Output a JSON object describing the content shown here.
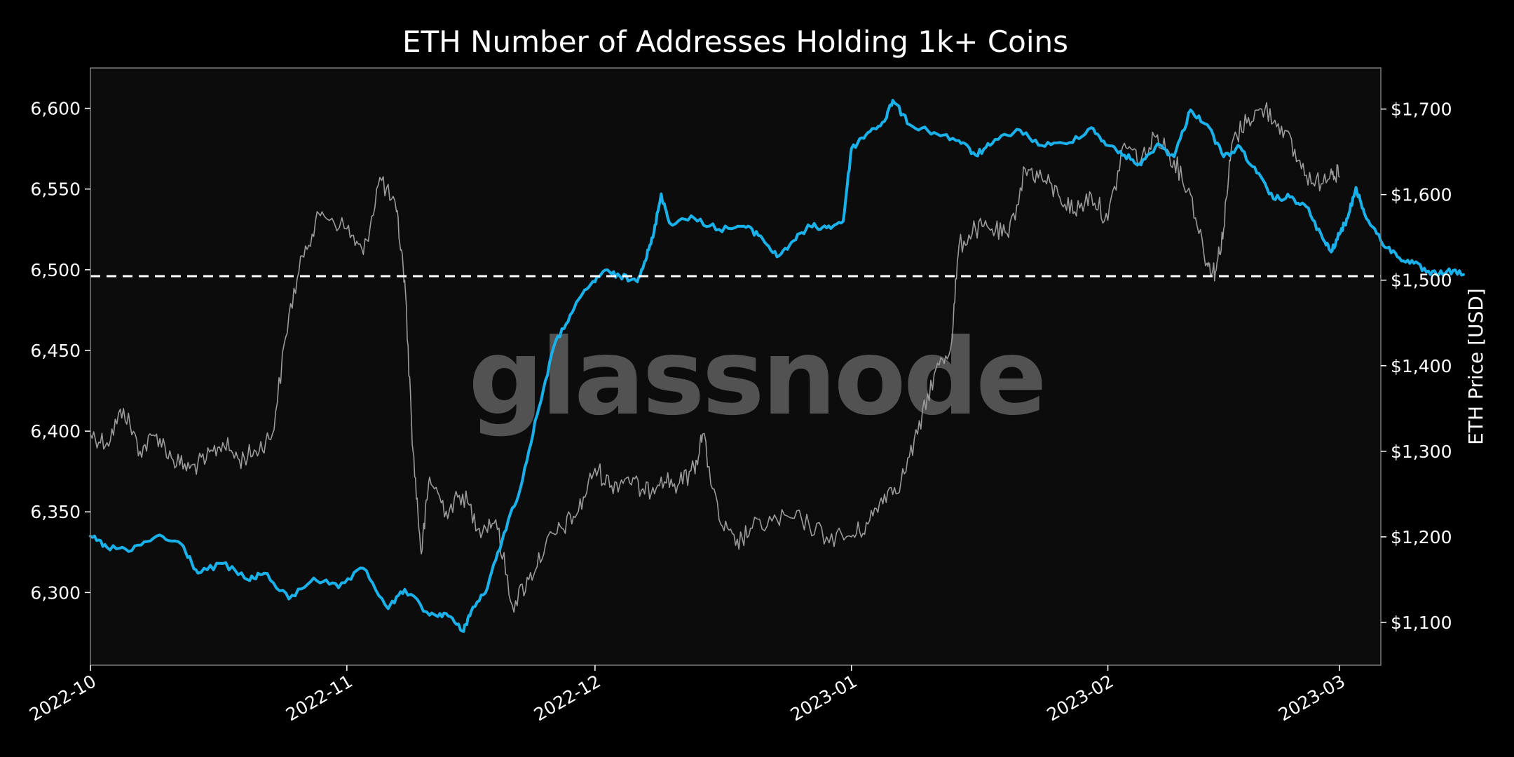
{
  "chart_data": {
    "type": "line",
    "title": "ETH Number of Addresses Holding 1k+ Coins",
    "watermark": "glassnode",
    "ylabel_right": "ETH Price [USD]",
    "x_ticks": [
      "2022-10",
      "2022-11",
      "2022-12",
      "2023-01",
      "2023-02",
      "2023-03"
    ],
    "x_range": [
      "2022-10-01",
      "2023-03-06"
    ],
    "y_left": {
      "ticks": [
        6300,
        6350,
        6400,
        6450,
        6500,
        6550,
        6600
      ],
      "tick_labels": [
        "6,300",
        "6,350",
        "6,400",
        "6,450",
        "6,500",
        "6,550",
        "6,600"
      ],
      "range": [
        6255,
        6625
      ]
    },
    "y_right": {
      "ticks": [
        1100,
        1200,
        1300,
        1400,
        1500,
        1600,
        1700
      ],
      "tick_labels": [
        "$1,100",
        "$1,200",
        "$1,300",
        "$1,400",
        "$1,500",
        "$1,600",
        "$1,700"
      ],
      "range": [
        1050,
        1748
      ]
    },
    "reference_line": {
      "axis": "left",
      "value": 6496
    },
    "series": [
      {
        "name": "Addresses Holding 1k+ Coins",
        "axis": "left",
        "color": "#1ab1ea",
        "anchors": [
          [
            "2022-10-01",
            6335
          ],
          [
            "2022-10-03",
            6328
          ],
          [
            "2022-10-06",
            6326
          ],
          [
            "2022-10-09",
            6335
          ],
          [
            "2022-10-12",
            6330
          ],
          [
            "2022-10-14",
            6312
          ],
          [
            "2022-10-17",
            6318
          ],
          [
            "2022-10-20",
            6308
          ],
          [
            "2022-10-22",
            6312
          ],
          [
            "2022-10-25",
            6296
          ],
          [
            "2022-10-28",
            6309
          ],
          [
            "2022-10-31",
            6303
          ],
          [
            "2022-11-03",
            6315
          ],
          [
            "2022-11-06",
            6290
          ],
          [
            "2022-11-08",
            6302
          ],
          [
            "2022-11-11",
            6286
          ],
          [
            "2022-11-13",
            6287
          ],
          [
            "2022-11-15",
            6276
          ],
          [
            "2022-11-16",
            6288
          ],
          [
            "2022-11-18",
            6303
          ],
          [
            "2022-11-20",
            6337
          ],
          [
            "2022-11-22",
            6365
          ],
          [
            "2022-11-24",
            6410
          ],
          [
            "2022-11-26",
            6452
          ],
          [
            "2022-11-28",
            6472
          ],
          [
            "2022-11-30",
            6488
          ],
          [
            "2022-12-02",
            6499
          ],
          [
            "2022-12-04",
            6496
          ],
          [
            "2022-12-06",
            6493
          ],
          [
            "2022-12-07",
            6505
          ],
          [
            "2022-12-08",
            6520
          ],
          [
            "2022-12-09",
            6547
          ],
          [
            "2022-12-10",
            6529
          ],
          [
            "2022-12-13",
            6532
          ],
          [
            "2022-12-16",
            6525
          ],
          [
            "2022-12-19",
            6527
          ],
          [
            "2022-12-21",
            6521
          ],
          [
            "2022-12-23",
            6508
          ],
          [
            "2022-12-25",
            6518
          ],
          [
            "2022-12-27",
            6527
          ],
          [
            "2022-12-29",
            6526
          ],
          [
            "2022-12-31",
            6530
          ],
          [
            "2023-01-01",
            6575
          ],
          [
            "2023-01-03",
            6585
          ],
          [
            "2023-01-05",
            6592
          ],
          [
            "2023-01-06",
            6605
          ],
          [
            "2023-01-08",
            6590
          ],
          [
            "2023-01-11",
            6585
          ],
          [
            "2023-01-14",
            6580
          ],
          [
            "2023-01-16",
            6571
          ],
          [
            "2023-01-18",
            6578
          ],
          [
            "2023-01-21",
            6587
          ],
          [
            "2023-01-24",
            6577
          ],
          [
            "2023-01-27",
            6578
          ],
          [
            "2023-01-30",
            6588
          ],
          [
            "2023-02-01",
            6577
          ],
          [
            "2023-02-03",
            6571
          ],
          [
            "2023-02-05",
            6565
          ],
          [
            "2023-02-07",
            6578
          ],
          [
            "2023-02-09",
            6570
          ],
          [
            "2023-02-11",
            6599
          ],
          [
            "2023-02-13",
            6590
          ],
          [
            "2023-02-15",
            6570
          ],
          [
            "2023-02-17",
            6576
          ],
          [
            "2023-02-19",
            6560
          ],
          [
            "2023-02-21",
            6544
          ],
          [
            "2023-02-23",
            6545
          ],
          [
            "2023-02-25",
            6539
          ],
          [
            "2023-02-27",
            6519
          ],
          [
            "2023-02-28",
            6511
          ],
          [
            "2023-03-01",
            6522
          ],
          [
            "2023-03-02",
            6532
          ],
          [
            "2023-03-03",
            6551
          ],
          [
            "2023-03-04",
            6535
          ],
          [
            "2023-03-06",
            6518
          ],
          [
            "2023-03-08",
            6508
          ],
          [
            "2023-03-10",
            6504
          ],
          [
            "2023-03-12",
            6497
          ],
          [
            "2023-03-14",
            6499
          ],
          [
            "2023-03-16",
            6497
          ]
        ]
      },
      {
        "name": "ETH Price [USD]",
        "axis": "right",
        "color": "#9a9a9a",
        "anchors": [
          [
            "2022-10-01",
            1320
          ],
          [
            "2022-10-03",
            1310
          ],
          [
            "2022-10-05",
            1350
          ],
          [
            "2022-10-07",
            1300
          ],
          [
            "2022-10-09",
            1320
          ],
          [
            "2022-10-11",
            1290
          ],
          [
            "2022-10-13",
            1280
          ],
          [
            "2022-10-15",
            1290
          ],
          [
            "2022-10-17",
            1310
          ],
          [
            "2022-10-19",
            1290
          ],
          [
            "2022-10-21",
            1300
          ],
          [
            "2022-10-23",
            1320
          ],
          [
            "2022-10-25",
            1460
          ],
          [
            "2022-10-27",
            1540
          ],
          [
            "2022-10-29",
            1580
          ],
          [
            "2022-11-01",
            1560
          ],
          [
            "2022-11-03",
            1530
          ],
          [
            "2022-11-05",
            1620
          ],
          [
            "2022-11-07",
            1580
          ],
          [
            "2022-11-08",
            1500
          ],
          [
            "2022-11-09",
            1300
          ],
          [
            "2022-11-10",
            1180
          ],
          [
            "2022-11-11",
            1270
          ],
          [
            "2022-11-13",
            1230
          ],
          [
            "2022-11-15",
            1250
          ],
          [
            "2022-11-17",
            1210
          ],
          [
            "2022-11-19",
            1220
          ],
          [
            "2022-11-21",
            1120
          ],
          [
            "2022-11-23",
            1150
          ],
          [
            "2022-11-25",
            1190
          ],
          [
            "2022-11-27",
            1210
          ],
          [
            "2022-11-29",
            1230
          ],
          [
            "2022-12-01",
            1280
          ],
          [
            "2022-12-03",
            1260
          ],
          [
            "2022-12-05",
            1270
          ],
          [
            "2022-12-07",
            1250
          ],
          [
            "2022-12-09",
            1270
          ],
          [
            "2022-12-11",
            1260
          ],
          [
            "2022-12-13",
            1280
          ],
          [
            "2022-12-14",
            1320
          ],
          [
            "2022-12-16",
            1220
          ],
          [
            "2022-12-18",
            1190
          ],
          [
            "2022-12-20",
            1210
          ],
          [
            "2022-12-23",
            1220
          ],
          [
            "2022-12-26",
            1220
          ],
          [
            "2022-12-29",
            1200
          ],
          [
            "2023-01-01",
            1200
          ],
          [
            "2023-01-03",
            1215
          ],
          [
            "2023-01-05",
            1250
          ],
          [
            "2023-01-07",
            1265
          ],
          [
            "2023-01-09",
            1320
          ],
          [
            "2023-01-11",
            1390
          ],
          [
            "2023-01-13",
            1420
          ],
          [
            "2023-01-14",
            1540
          ],
          [
            "2023-01-16",
            1560
          ],
          [
            "2023-01-18",
            1560
          ],
          [
            "2023-01-20",
            1550
          ],
          [
            "2023-01-22",
            1630
          ],
          [
            "2023-01-24",
            1620
          ],
          [
            "2023-01-26",
            1600
          ],
          [
            "2023-01-28",
            1580
          ],
          [
            "2023-01-30",
            1600
          ],
          [
            "2023-02-01",
            1570
          ],
          [
            "2023-02-03",
            1660
          ],
          [
            "2023-02-05",
            1640
          ],
          [
            "2023-02-07",
            1670
          ],
          [
            "2023-02-09",
            1640
          ],
          [
            "2023-02-11",
            1600
          ],
          [
            "2023-02-13",
            1520
          ],
          [
            "2023-02-14",
            1510
          ],
          [
            "2023-02-15",
            1560
          ],
          [
            "2023-02-16",
            1660
          ],
          [
            "2023-02-18",
            1690
          ],
          [
            "2023-02-20",
            1700
          ],
          [
            "2023-02-22",
            1680
          ],
          [
            "2023-02-24",
            1640
          ],
          [
            "2023-02-26",
            1610
          ],
          [
            "2023-02-28",
            1630
          ],
          [
            "2023-03-01",
            1620
          ]
        ]
      }
    ]
  }
}
